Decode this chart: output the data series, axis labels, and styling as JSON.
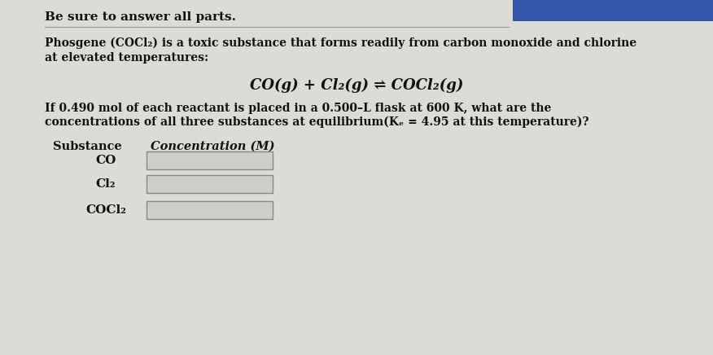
{
  "bg_color": "#dddbd6",
  "blue_bar_color": "#3355aa",
  "title_text": "Be sure to answer all parts.",
  "line1": "Phosgene (COCl₂) is a toxic substance that forms readily from carbon monoxide and chlorine",
  "line2": "at elevated temperatures:",
  "equation_left": "CO(g) + Cl₂(g) ",
  "equation_arrow": "⇌",
  "equation_right": " COCl₂(g)",
  "q_line1": "If 0.490 mol of each reactant is placed in a 0.500–L flask at 600 K, what are the",
  "q_line2": "concentrations of all three substances at equilibrium(Kₑ = 4.95 at this temperature)?",
  "header_substance": "Substance",
  "header_concentration": "Concentration (M)",
  "substances": [
    "CO",
    "Cl₂",
    "COCl₂"
  ],
  "box_facecolor": "#d0cec9",
  "box_edgecolor": "#888888",
  "text_color": "#111111"
}
